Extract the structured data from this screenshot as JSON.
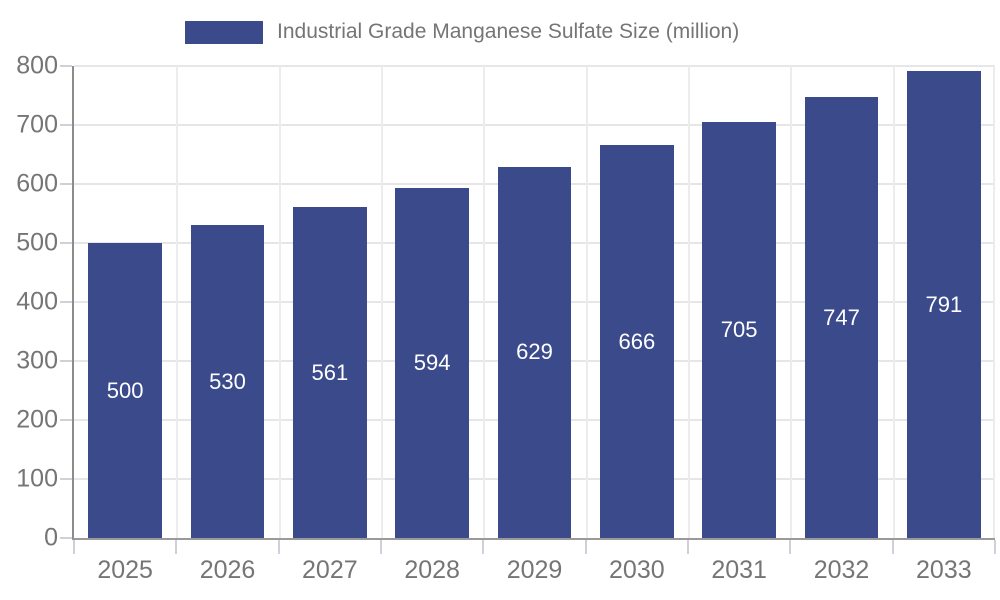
{
  "legend": {
    "label": "Industrial Grade Manganese Sulfate Size (million)"
  },
  "chart_data": {
    "type": "bar",
    "title": "Industrial Grade Manganese Sulfate Size (million)",
    "categories": [
      "2025",
      "2026",
      "2027",
      "2028",
      "2029",
      "2030",
      "2031",
      "2032",
      "2033"
    ],
    "values": [
      500,
      530,
      561,
      594,
      629,
      666,
      705,
      747,
      791
    ],
    "xlabel": "",
    "ylabel": "",
    "ylim": [
      0,
      800
    ],
    "ytick_step": 100,
    "grid": true,
    "legend_position": "top",
    "bar_width_fraction": 0.72,
    "colors": {
      "bar": "#3a4a8b",
      "bar_label": "#ffffff",
      "axis_text": "#757575",
      "axis_line": "#8c8c8c",
      "gridline": "#e6e6e6",
      "background": "#ffffff"
    }
  }
}
